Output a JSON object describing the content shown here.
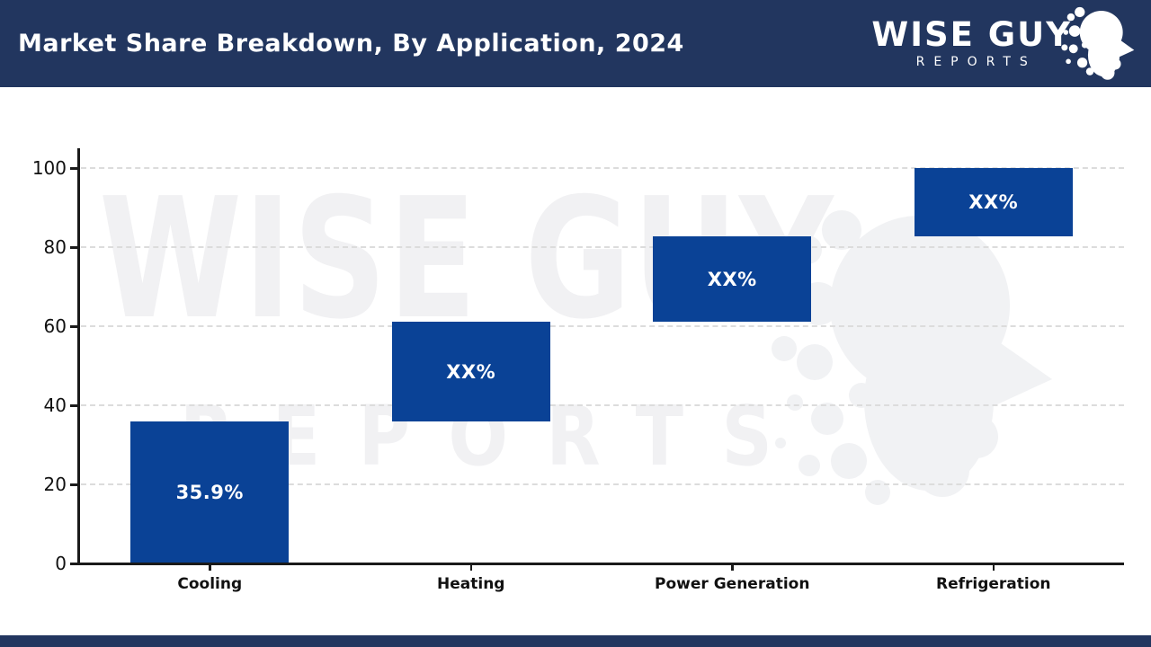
{
  "header": {
    "title": "Market Share Breakdown, By Application, 2024",
    "logo": {
      "line1": "WISE GUY",
      "line2": "REPORTS"
    }
  },
  "watermark": {
    "line1": "WISE GUY",
    "line2": "REPORTS"
  },
  "chart_data": {
    "type": "bar",
    "subtype": "waterfall",
    "title": "Market Share Breakdown, By Application, 2024",
    "xlabel": "",
    "ylabel": "",
    "categories": [
      "Cooling",
      "Heating",
      "Power Generation",
      "Refrigeration"
    ],
    "segments": [
      {
        "category": "Cooling",
        "start": 0,
        "end": 35.9,
        "label": "35.9%"
      },
      {
        "category": "Heating",
        "start": 35.9,
        "end": 61.1,
        "label": "XX%"
      },
      {
        "category": "Power Generation",
        "start": 61.1,
        "end": 82.7,
        "label": "XX%"
      },
      {
        "category": "Refrigeration",
        "start": 82.7,
        "end": 100,
        "label": "XX%"
      }
    ],
    "yticks": [
      0,
      20,
      40,
      60,
      80,
      100
    ],
    "ylim": [
      0,
      105
    ],
    "grid": "horizontal dashed",
    "legend": "none",
    "bar_color": "#0a4296",
    "bar_label_color": "#ffffff"
  },
  "colors": {
    "header_bg": "#22365f",
    "footer_bg": "#22365f",
    "axis": "#1a1a1a",
    "gridline": "#dcdcdc",
    "watermark": "#f1f1f3",
    "background": "#ffffff"
  }
}
